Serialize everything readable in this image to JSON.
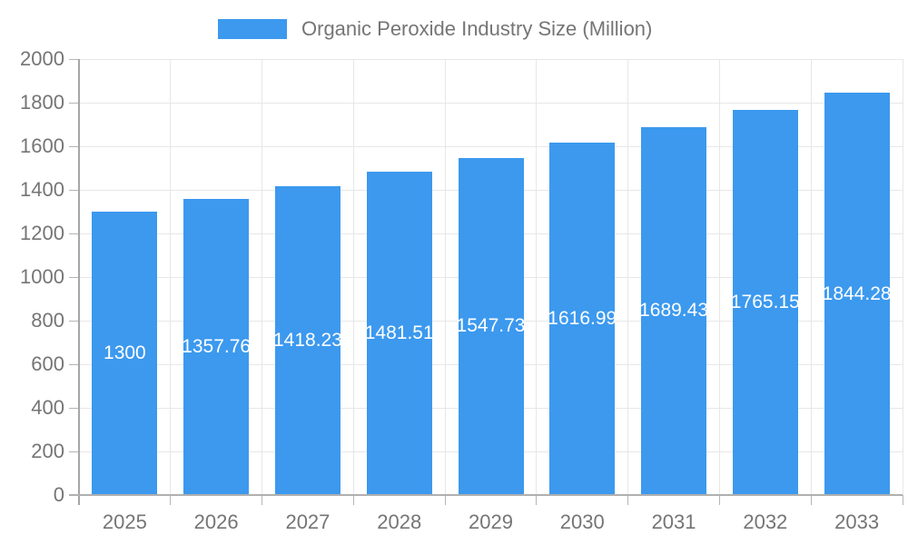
{
  "legend": {
    "label": "Organic Peroxide Industry Size (Million)"
  },
  "chart_data": {
    "type": "bar",
    "title": "Organic Peroxide Industry Size (Million)",
    "categories": [
      "2025",
      "2026",
      "2027",
      "2028",
      "2029",
      "2030",
      "2031",
      "2032",
      "2033"
    ],
    "values": [
      1300,
      1357.76,
      1418.23,
      1481.51,
      1547.73,
      1616.99,
      1689.43,
      1765.15,
      1844.28
    ],
    "value_labels": [
      "1300",
      "1357.76",
      "1418.23",
      "1481.51",
      "1547.73",
      "1616.99",
      "1689.43",
      "1765.15",
      "1844.28"
    ],
    "xlabel": "",
    "ylabel": "",
    "ylim": [
      0,
      2000
    ],
    "yticks": [
      0,
      200,
      400,
      600,
      800,
      1000,
      1200,
      1400,
      1600,
      1800,
      2000
    ],
    "grid": true,
    "legend_position": "top",
    "colors": {
      "bar": "#3c99ee",
      "bar_value_label": "#ffffff",
      "tick_label": "#757575",
      "legend_text": "#757575",
      "gridline": "#e7e7e7",
      "y_axis_line": "#a6a6a6",
      "x_axis_line": "#b0b0b0",
      "tick_mark": "#b5b5b5"
    }
  }
}
